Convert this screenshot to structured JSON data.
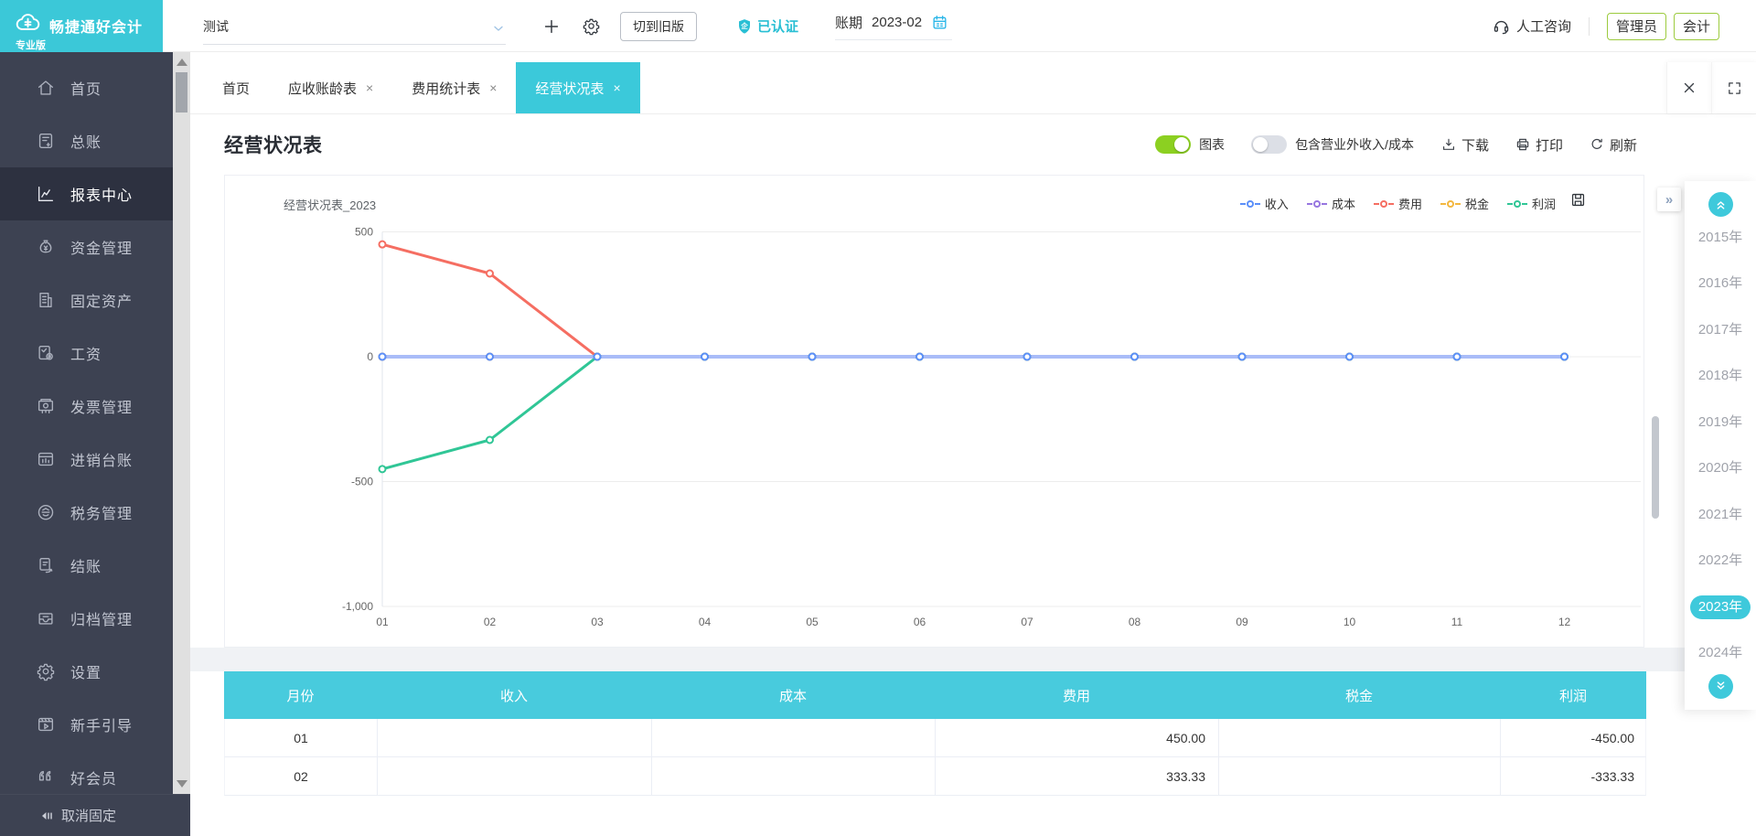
{
  "brand": {
    "name": "畅捷通好会计",
    "edition": "专业版"
  },
  "topbar": {
    "company": "测试",
    "switch_old_label": "切到旧版",
    "certified_label": "已认证",
    "period_label": "账期",
    "period_value": "2023-02",
    "support_label": "人工咨询",
    "role_admin": "管理员",
    "role_accountant": "会计"
  },
  "sidebar": {
    "items": [
      {
        "id": "home",
        "label": "首页",
        "icon": "home",
        "active": false
      },
      {
        "id": "general-ledger",
        "label": "总账",
        "icon": "ledger",
        "active": false
      },
      {
        "id": "report-center",
        "label": "报表中心",
        "icon": "report",
        "active": true
      },
      {
        "id": "funds-management",
        "label": "资金管理",
        "icon": "funds",
        "active": false
      },
      {
        "id": "fixed-assets",
        "label": "固定资产",
        "icon": "building",
        "active": false
      },
      {
        "id": "payroll",
        "label": "工资",
        "icon": "payroll",
        "active": false
      },
      {
        "id": "invoice-management",
        "label": "发票管理",
        "icon": "invoice",
        "active": false
      },
      {
        "id": "purchase-sales-ledger",
        "label": "进销台账",
        "icon": "ledger2",
        "active": false
      },
      {
        "id": "tax-management",
        "label": "税务管理",
        "icon": "tax",
        "active": false
      },
      {
        "id": "closing",
        "label": "结账",
        "icon": "closing",
        "active": false
      },
      {
        "id": "archive-management",
        "label": "归档管理",
        "icon": "archive",
        "active": false
      },
      {
        "id": "settings",
        "label": "设置",
        "icon": "gear",
        "active": false
      },
      {
        "id": "beginner-guide",
        "label": "新手引导",
        "icon": "video",
        "active": false
      },
      {
        "id": "member",
        "label": "好会员",
        "icon": "quotes",
        "active": false
      }
    ],
    "unpin_label": "取消固定"
  },
  "tabs": {
    "items": [
      {
        "label": "首页",
        "closable": false,
        "active": false
      },
      {
        "label": "应收账龄表",
        "closable": true,
        "active": false
      },
      {
        "label": "费用统计表",
        "closable": true,
        "active": false
      },
      {
        "label": "经营状况表",
        "closable": true,
        "active": true
      }
    ]
  },
  "page": {
    "title": "经营状况表"
  },
  "toolbar": {
    "chart_toggle_label": "图表",
    "chart_toggle_on": true,
    "include_toggle_label": "包含营业外收入/成本",
    "include_toggle_on": false,
    "actions": [
      {
        "id": "download",
        "label": "下载",
        "icon": "download"
      },
      {
        "id": "print",
        "label": "打印",
        "icon": "print"
      },
      {
        "id": "refresh",
        "label": "刷新",
        "icon": "refresh"
      }
    ]
  },
  "chart_data": {
    "type": "line",
    "title": "经营状况表_2023",
    "x": [
      "01",
      "02",
      "03",
      "04",
      "05",
      "06",
      "07",
      "08",
      "09",
      "10",
      "11",
      "12"
    ],
    "series": [
      {
        "name": "收入",
        "color": "#5B8FF9",
        "line_color": "#A9BCF8",
        "values": [
          0,
          0,
          0,
          0,
          0,
          0,
          0,
          0,
          0,
          0,
          0,
          0
        ]
      },
      {
        "name": "成本",
        "color": "#9776E0",
        "values": [
          0,
          0,
          0,
          0,
          0,
          0,
          0,
          0,
          0,
          0,
          0,
          0
        ]
      },
      {
        "name": "费用",
        "color": "#F56E62",
        "values": [
          450,
          333.33,
          0,
          0,
          0,
          0,
          0,
          0,
          0,
          0,
          0,
          0
        ]
      },
      {
        "name": "税金",
        "color": "#F3B73F",
        "values": [
          0,
          0,
          0,
          0,
          0,
          0,
          0,
          0,
          0,
          0,
          0,
          0
        ]
      },
      {
        "name": "利润",
        "color": "#30C696",
        "values": [
          -450,
          -333.33,
          0,
          0,
          0,
          0,
          0,
          0,
          0,
          0,
          0,
          0
        ]
      }
    ],
    "ylim": [
      -1000,
      500
    ],
    "yticks": [
      500,
      0,
      -500,
      -1000
    ],
    "ytick_labels": [
      "500",
      "0",
      "-500",
      "-1,000"
    ],
    "grid": true,
    "legend_position": "top-right"
  },
  "years": {
    "items": [
      "2015年",
      "2016年",
      "2017年",
      "2018年",
      "2019年",
      "2020年",
      "2021年",
      "2022年",
      "2023年",
      "2024年"
    ],
    "selected": "2023年"
  },
  "table": {
    "columns": [
      "月份",
      "收入",
      "成本",
      "费用",
      "税金",
      "利润"
    ],
    "rows": [
      [
        "01",
        "",
        "",
        "450.00",
        "",
        "-450.00"
      ],
      [
        "02",
        "",
        "",
        "333.33",
        "",
        "-333.33"
      ]
    ]
  },
  "colors": {
    "brand_teal": "#3BC8D8",
    "tab_active": "#3BC9DA",
    "table_header": "#48CBDD",
    "sidebar_bg": "#3D4252",
    "sidebar_active_bg": "#2D3140",
    "toggle_on": "#8CD021",
    "toggle_off": "#DCDFE6",
    "role_button_border": "#9CCB3E",
    "certified": "#29BFD4",
    "year_selected": "#3EC9DB"
  }
}
